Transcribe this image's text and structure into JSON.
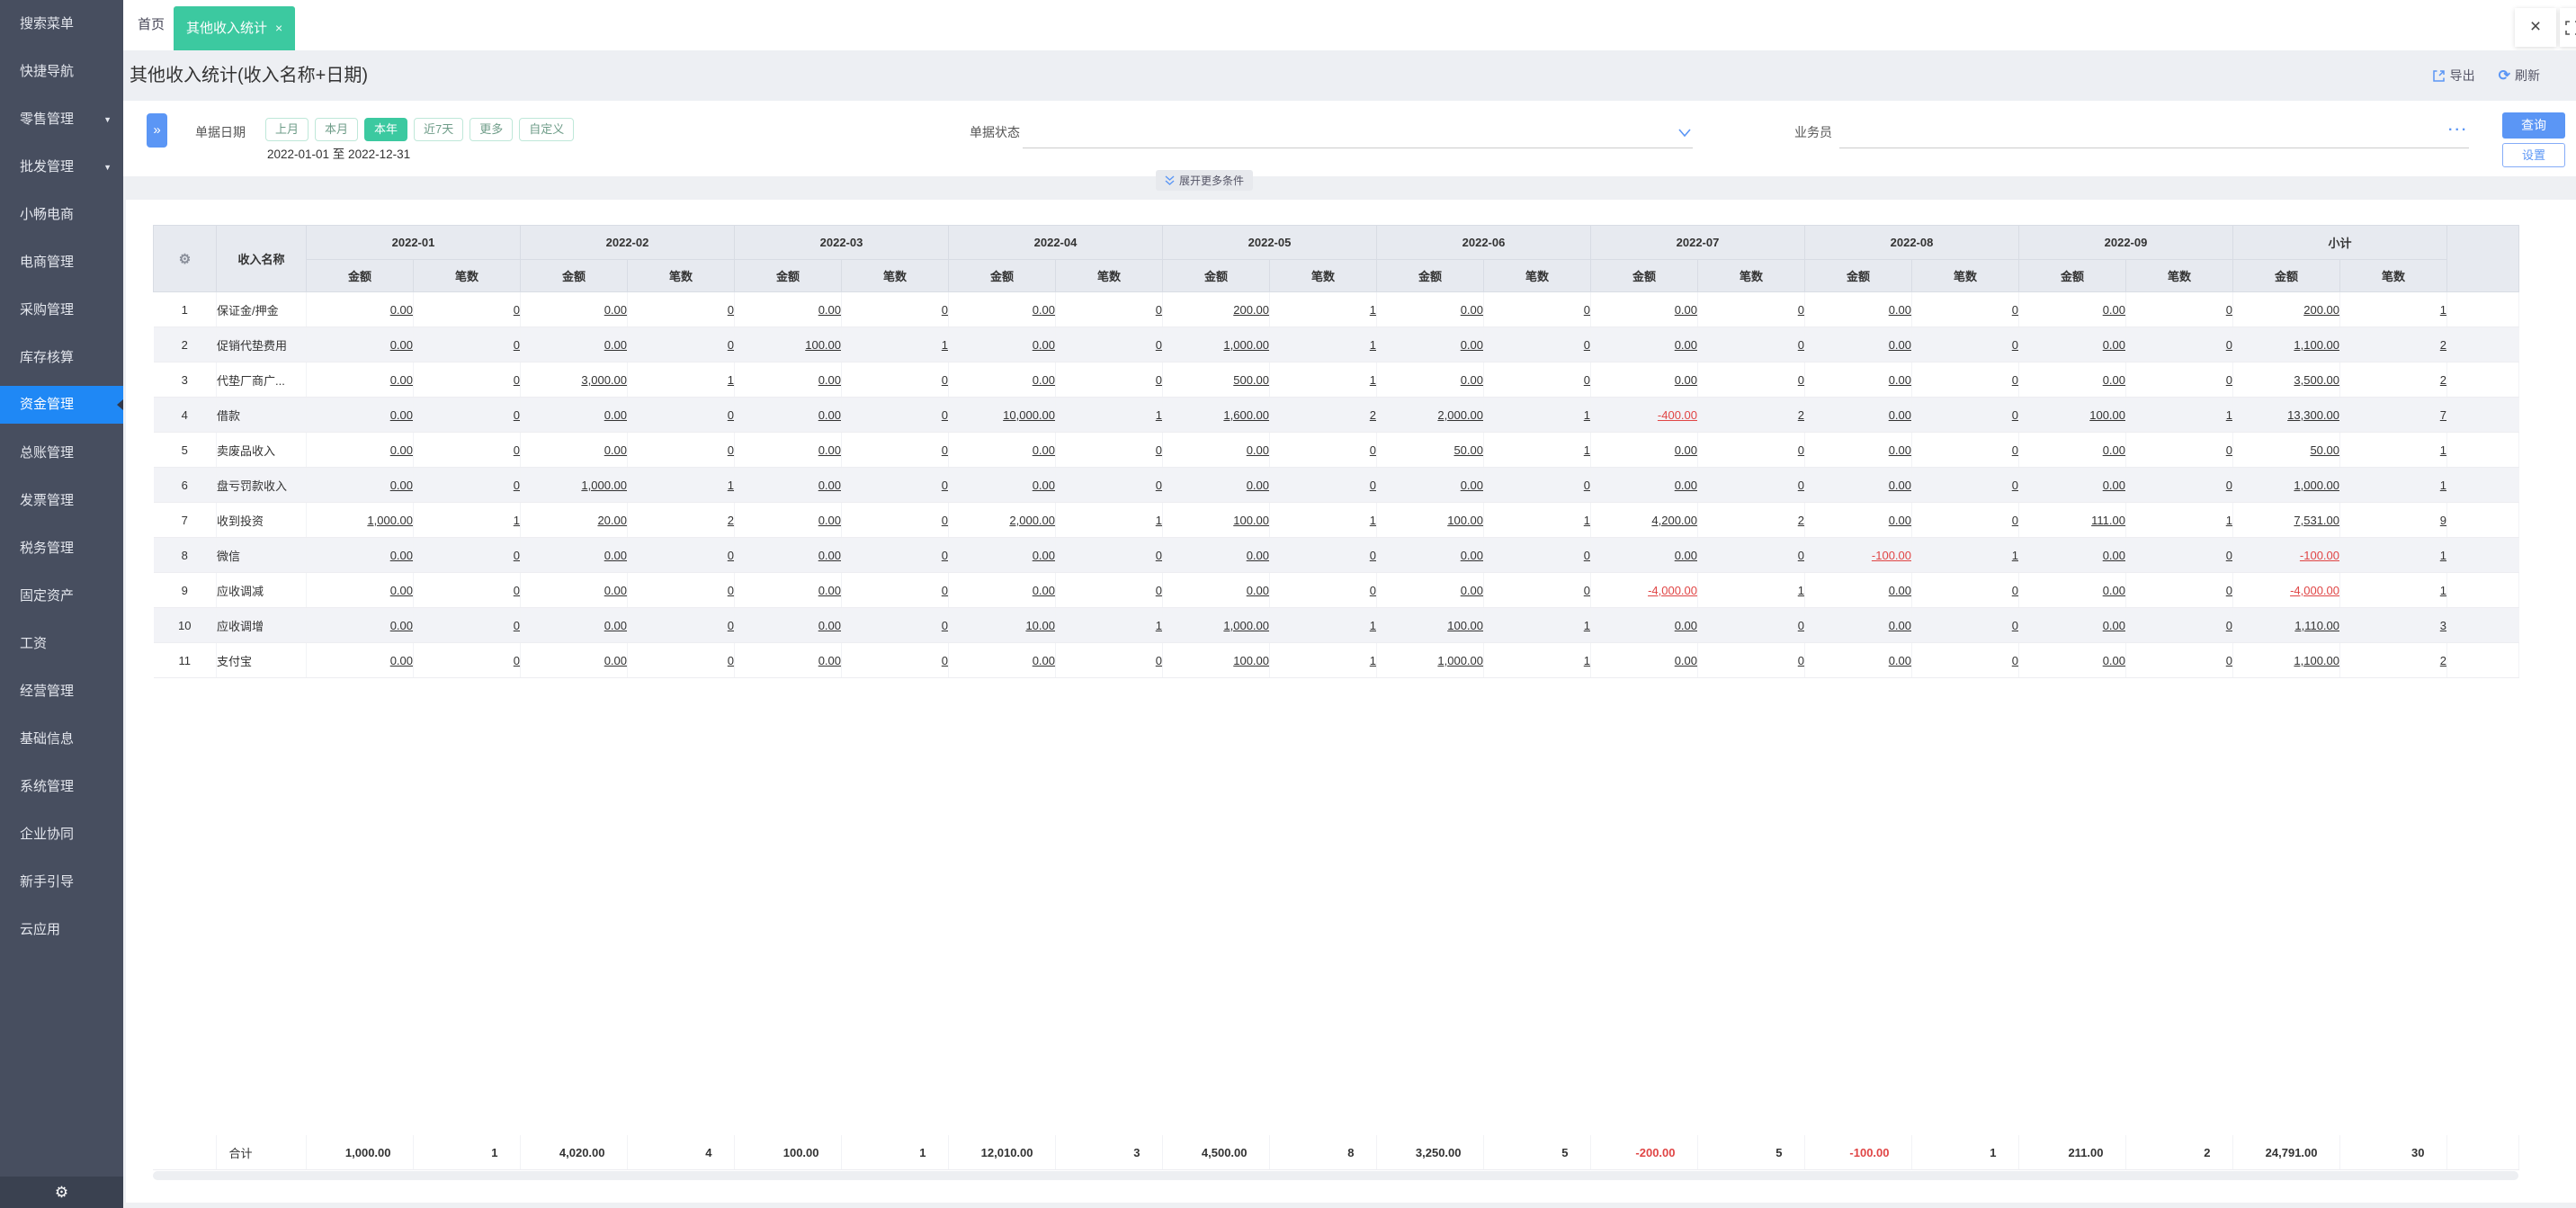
{
  "colors": {
    "accent_blue": "#5b96f5",
    "green": "#3cc9a0",
    "red": "#e04545",
    "sidebar_bg": "#474e5f",
    "sidebar_active": "#1f88f5",
    "total_row_bg": "#fcf1d5"
  },
  "sidebar": {
    "active_index": 8,
    "items": [
      {
        "label": "搜索菜单",
        "caret": false
      },
      {
        "label": "快捷导航",
        "caret": false
      },
      {
        "label": "零售管理",
        "caret": true
      },
      {
        "label": "批发管理",
        "caret": true
      },
      {
        "label": "小畅电商",
        "caret": false
      },
      {
        "label": "电商管理",
        "caret": false
      },
      {
        "label": "采购管理",
        "caret": false
      },
      {
        "label": "库存核算",
        "caret": false
      },
      {
        "label": "资金管理",
        "caret": false
      },
      {
        "label": "总账管理",
        "caret": false
      },
      {
        "label": "发票管理",
        "caret": false
      },
      {
        "label": "税务管理",
        "caret": false
      },
      {
        "label": "固定资产",
        "caret": false
      },
      {
        "label": "工资",
        "caret": false
      },
      {
        "label": "经营管理",
        "caret": false
      },
      {
        "label": "基础信息",
        "caret": false
      },
      {
        "label": "系统管理",
        "caret": false
      },
      {
        "label": "企业协同",
        "caret": false
      },
      {
        "label": "新手引导",
        "caret": false
      },
      {
        "label": "云应用",
        "caret": false
      }
    ]
  },
  "tabs": {
    "home": "首页",
    "active": "其他收入统计",
    "close": "×"
  },
  "header": {
    "title": "其他收入统计(收入名称+日期)",
    "export": "导出",
    "refresh": "刷新"
  },
  "filters": {
    "date_label": "单据日期",
    "pills": [
      "上月",
      "本月",
      "本年",
      "近7天",
      "更多",
      "自定义"
    ],
    "active_pill": "本年",
    "date_range": "2022-01-01 至 2022-12-31",
    "status_label": "单据状态",
    "salesman_label": "业务员",
    "more": "...",
    "query": "查询",
    "settings": "设置",
    "expand_more": "展开更多条件"
  },
  "icons": {
    "gear": "⚙",
    "sidebar_gear": "⚙",
    "caret": "▼",
    "expand": "»",
    "refresh": "⟳"
  },
  "table": {
    "name_header": "收入名称",
    "months": [
      "2022-01",
      "2022-02",
      "2022-03",
      "2022-04",
      "2022-05",
      "2022-06",
      "2022-07",
      "2022-08",
      "2022-09",
      "小计"
    ],
    "sub_headers": [
      "金额",
      "笔数"
    ],
    "rows": [
      {
        "no": "1",
        "name": "保证金/押金",
        "values": [
          [
            "0.00",
            "0"
          ],
          [
            "0.00",
            "0"
          ],
          [
            "0.00",
            "0"
          ],
          [
            "0.00",
            "0"
          ],
          [
            "200.00",
            "1"
          ],
          [
            "0.00",
            "0"
          ],
          [
            "0.00",
            "0"
          ],
          [
            "0.00",
            "0"
          ],
          [
            "0.00",
            "0"
          ],
          [
            "200.00",
            "1"
          ]
        ]
      },
      {
        "no": "2",
        "name": "促销代垫费用",
        "values": [
          [
            "0.00",
            "0"
          ],
          [
            "0.00",
            "0"
          ],
          [
            "100.00",
            "1"
          ],
          [
            "0.00",
            "0"
          ],
          [
            "1,000.00",
            "1"
          ],
          [
            "0.00",
            "0"
          ],
          [
            "0.00",
            "0"
          ],
          [
            "0.00",
            "0"
          ],
          [
            "0.00",
            "0"
          ],
          [
            "1,100.00",
            "2"
          ]
        ]
      },
      {
        "no": "3",
        "name": "代垫厂商广...",
        "values": [
          [
            "0.00",
            "0"
          ],
          [
            "3,000.00",
            "1"
          ],
          [
            "0.00",
            "0"
          ],
          [
            "0.00",
            "0"
          ],
          [
            "500.00",
            "1"
          ],
          [
            "0.00",
            "0"
          ],
          [
            "0.00",
            "0"
          ],
          [
            "0.00",
            "0"
          ],
          [
            "0.00",
            "0"
          ],
          [
            "3,500.00",
            "2"
          ]
        ]
      },
      {
        "no": "4",
        "name": "借款",
        "values": [
          [
            "0.00",
            "0"
          ],
          [
            "0.00",
            "0"
          ],
          [
            "0.00",
            "0"
          ],
          [
            "10,000.00",
            "1"
          ],
          [
            "1,600.00",
            "2"
          ],
          [
            "2,000.00",
            "1"
          ],
          [
            "-400.00",
            "2"
          ],
          [
            "0.00",
            "0"
          ],
          [
            "100.00",
            "1"
          ],
          [
            "13,300.00",
            "7"
          ]
        ]
      },
      {
        "no": "5",
        "name": "卖废品收入",
        "values": [
          [
            "0.00",
            "0"
          ],
          [
            "0.00",
            "0"
          ],
          [
            "0.00",
            "0"
          ],
          [
            "0.00",
            "0"
          ],
          [
            "0.00",
            "0"
          ],
          [
            "50.00",
            "1"
          ],
          [
            "0.00",
            "0"
          ],
          [
            "0.00",
            "0"
          ],
          [
            "0.00",
            "0"
          ],
          [
            "50.00",
            "1"
          ]
        ]
      },
      {
        "no": "6",
        "name": "盘亏罚款收入",
        "values": [
          [
            "0.00",
            "0"
          ],
          [
            "1,000.00",
            "1"
          ],
          [
            "0.00",
            "0"
          ],
          [
            "0.00",
            "0"
          ],
          [
            "0.00",
            "0"
          ],
          [
            "0.00",
            "0"
          ],
          [
            "0.00",
            "0"
          ],
          [
            "0.00",
            "0"
          ],
          [
            "0.00",
            "0"
          ],
          [
            "1,000.00",
            "1"
          ]
        ]
      },
      {
        "no": "7",
        "name": "收到投资",
        "values": [
          [
            "1,000.00",
            "1"
          ],
          [
            "20.00",
            "2"
          ],
          [
            "0.00",
            "0"
          ],
          [
            "2,000.00",
            "1"
          ],
          [
            "100.00",
            "1"
          ],
          [
            "100.00",
            "1"
          ],
          [
            "4,200.00",
            "2"
          ],
          [
            "0.00",
            "0"
          ],
          [
            "111.00",
            "1"
          ],
          [
            "7,531.00",
            "9"
          ]
        ]
      },
      {
        "no": "8",
        "name": "微信",
        "values": [
          [
            "0.00",
            "0"
          ],
          [
            "0.00",
            "0"
          ],
          [
            "0.00",
            "0"
          ],
          [
            "0.00",
            "0"
          ],
          [
            "0.00",
            "0"
          ],
          [
            "0.00",
            "0"
          ],
          [
            "0.00",
            "0"
          ],
          [
            "-100.00",
            "1"
          ],
          [
            "0.00",
            "0"
          ],
          [
            "-100.00",
            "1"
          ]
        ]
      },
      {
        "no": "9",
        "name": "应收调减",
        "values": [
          [
            "0.00",
            "0"
          ],
          [
            "0.00",
            "0"
          ],
          [
            "0.00",
            "0"
          ],
          [
            "0.00",
            "0"
          ],
          [
            "0.00",
            "0"
          ],
          [
            "0.00",
            "0"
          ],
          [
            "-4,000.00",
            "1"
          ],
          [
            "0.00",
            "0"
          ],
          [
            "0.00",
            "0"
          ],
          [
            "-4,000.00",
            "1"
          ]
        ]
      },
      {
        "no": "10",
        "name": "应收调增",
        "values": [
          [
            "0.00",
            "0"
          ],
          [
            "0.00",
            "0"
          ],
          [
            "0.00",
            "0"
          ],
          [
            "10.00",
            "1"
          ],
          [
            "1,000.00",
            "1"
          ],
          [
            "100.00",
            "1"
          ],
          [
            "0.00",
            "0"
          ],
          [
            "0.00",
            "0"
          ],
          [
            "0.00",
            "0"
          ],
          [
            "1,110.00",
            "3"
          ]
        ]
      },
      {
        "no": "11",
        "name": "支付宝",
        "values": [
          [
            "0.00",
            "0"
          ],
          [
            "0.00",
            "0"
          ],
          [
            "0.00",
            "0"
          ],
          [
            "0.00",
            "0"
          ],
          [
            "100.00",
            "1"
          ],
          [
            "1,000.00",
            "1"
          ],
          [
            "0.00",
            "0"
          ],
          [
            "0.00",
            "0"
          ],
          [
            "0.00",
            "0"
          ],
          [
            "1,100.00",
            "2"
          ]
        ]
      }
    ],
    "total_label": "合计",
    "totals": [
      [
        "1,000.00",
        "1"
      ],
      [
        "4,020.00",
        "4"
      ],
      [
        "100.00",
        "1"
      ],
      [
        "12,010.00",
        "3"
      ],
      [
        "4,500.00",
        "8"
      ],
      [
        "3,250.00",
        "5"
      ],
      [
        "-200.00",
        "5"
      ],
      [
        "-100.00",
        "1"
      ],
      [
        "211.00",
        "2"
      ],
      [
        "24,791.00",
        "30"
      ]
    ]
  }
}
